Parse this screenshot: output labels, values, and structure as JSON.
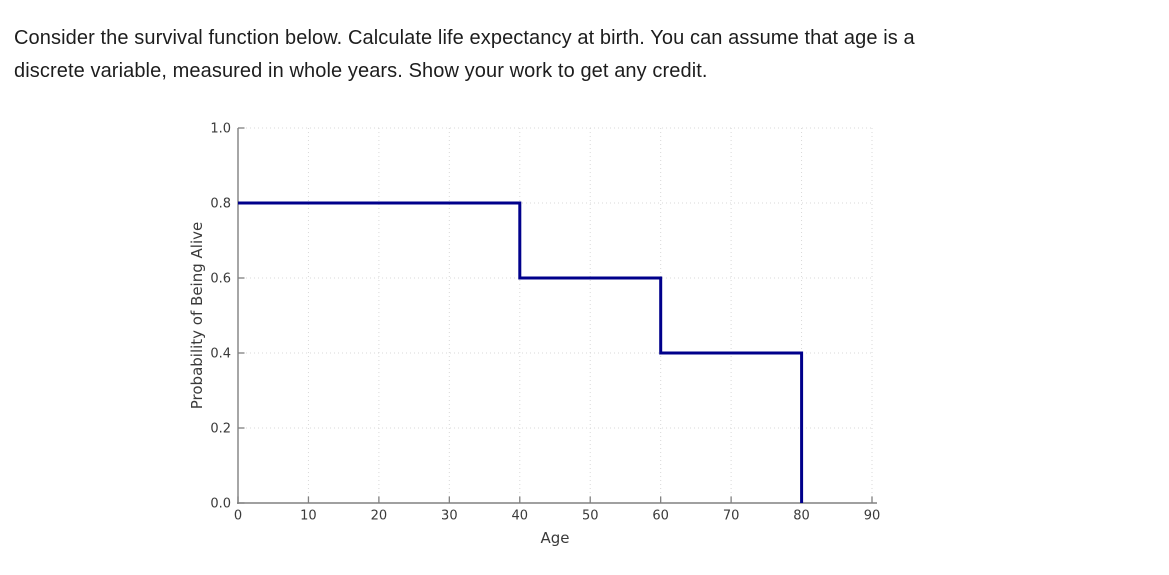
{
  "question": {
    "lines": [
      "Consider the survival function below. Calculate life expectancy at birth. You can assume that age is a",
      "discrete variable, measured in whole years. Show your work to get any credit."
    ]
  },
  "chart_data": {
    "type": "line",
    "subtype": "step",
    "title": "",
    "xlabel": "Age",
    "ylabel": "Probability of Being Alive",
    "xlim": [
      0,
      90
    ],
    "ylim": [
      0.0,
      1.0
    ],
    "x_ticks": [
      0,
      10,
      20,
      30,
      40,
      50,
      60,
      70,
      80,
      90
    ],
    "x_tick_labels": [
      "0",
      "10",
      "20",
      "30",
      "40",
      "50",
      "60",
      "70",
      "80",
      "90"
    ],
    "y_ticks": [
      0.0,
      0.2,
      0.4,
      0.6,
      0.8,
      1.0
    ],
    "y_tick_labels": [
      "0.0",
      "0.2",
      "0.4",
      "0.6",
      "0.8",
      "1.0"
    ],
    "grid": true,
    "grid_style": "dotted",
    "legend_position": "none",
    "series": [
      {
        "name": "survival-function",
        "color": "#00008B",
        "points": [
          [
            0,
            0.8
          ],
          [
            40,
            0.8
          ],
          [
            40,
            0.6
          ],
          [
            60,
            0.6
          ],
          [
            60,
            0.4
          ],
          [
            80,
            0.4
          ],
          [
            80,
            0.0
          ]
        ]
      }
    ],
    "colors": {
      "line": "#00008B",
      "axis": "#808080",
      "grid": "#d9d9d9",
      "tick_label": "#3a3a3a",
      "axis_label": "#3a3a3a"
    }
  }
}
